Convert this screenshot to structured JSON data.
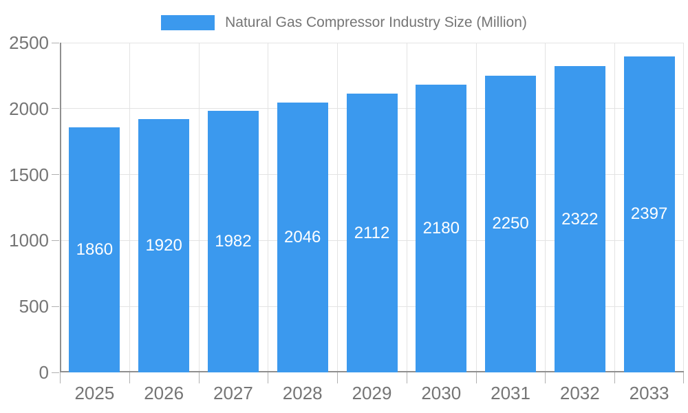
{
  "legend": {
    "label": "Natural Gas Compressor Industry Size (Million)"
  },
  "chart_data": {
    "type": "bar",
    "title": "Natural Gas Compressor Industry Size (Million)",
    "categories": [
      "2025",
      "2026",
      "2027",
      "2028",
      "2029",
      "2030",
      "2031",
      "2032",
      "2033"
    ],
    "values": [
      1860,
      1920,
      1982,
      2046,
      2112,
      2180,
      2250,
      2322,
      2397
    ],
    "xlabel": "",
    "ylabel": "",
    "ylim": [
      0,
      2500
    ],
    "yticks": [
      0,
      500,
      1000,
      1500,
      2000,
      2500
    ],
    "grid": true,
    "legend_position": "top",
    "colors": {
      "bar": "#3b99ee",
      "bar_value_text": "#ffffff",
      "axis_text": "#757575",
      "grid_line": "#e3e3e3",
      "axis_line": "#8f8f8f",
      "tick_mark": "#b0b0b0",
      "background": "#ffffff"
    }
  }
}
